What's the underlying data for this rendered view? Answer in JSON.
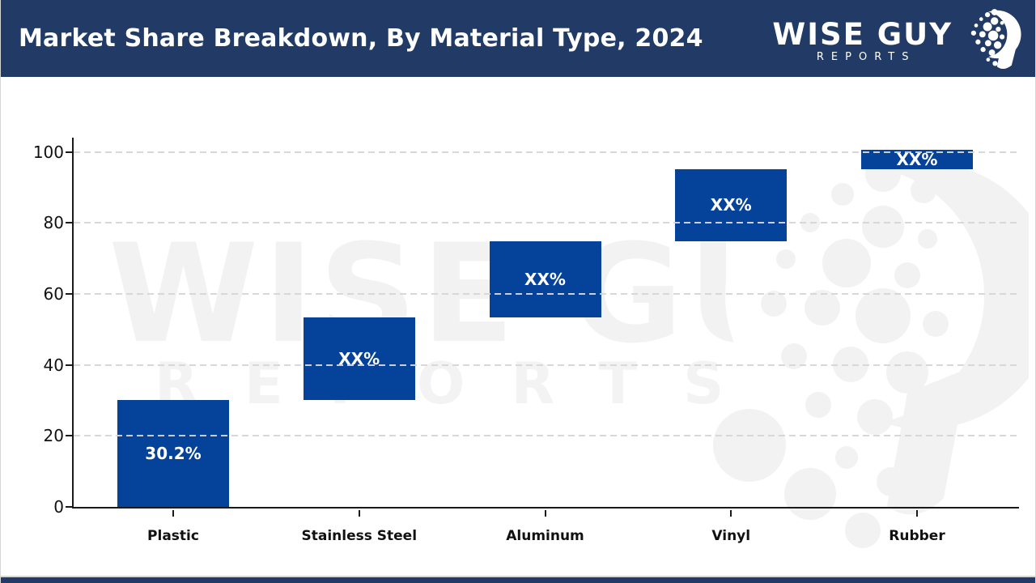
{
  "header": {
    "title": "Market Share Breakdown, By Material Type, 2024",
    "logo": {
      "line1": "WISE GUY",
      "line2": "REPORTS"
    }
  },
  "watermark": {
    "line1": "WISE GUY",
    "line2": "REPORTS"
  },
  "chart_data": {
    "type": "bar",
    "subtype": "waterfall-floating-bars",
    "title": "Market Share Breakdown, By Material Type, 2024",
    "categories": [
      "Plastic",
      "Stainless Steel",
      "Aluminum",
      "Vinyl",
      "Rubber"
    ],
    "segments": [
      {
        "category": "Plastic",
        "start": 0,
        "end": 30.2,
        "label": "30.2%"
      },
      {
        "category": "Stainless Steel",
        "start": 30.2,
        "end": 53.4,
        "label": "XX%"
      },
      {
        "category": "Aluminum",
        "start": 53.4,
        "end": 74.8,
        "label": "XX%"
      },
      {
        "category": "Vinyl",
        "start": 74.8,
        "end": 95.2,
        "label": "XX%"
      },
      {
        "category": "Rubber",
        "start": 95.2,
        "end": 100.5,
        "label": "XX%"
      }
    ],
    "xlabel": "",
    "ylabel": "",
    "ylim": [
      0,
      104
    ],
    "yticks": [
      0,
      20,
      40,
      60,
      80,
      100
    ],
    "grid": "horizontal-dashed",
    "legend": "none"
  },
  "colors": {
    "header_bg": "#213a66",
    "footer_bg": "#213a66",
    "bar_fill": "#05429a",
    "bar_label": "#ffffff",
    "grid_line": "#d6d6d6",
    "axis_line": "#1a1a1a",
    "tick_text": "#111111",
    "watermark": "#f2f2f2"
  }
}
